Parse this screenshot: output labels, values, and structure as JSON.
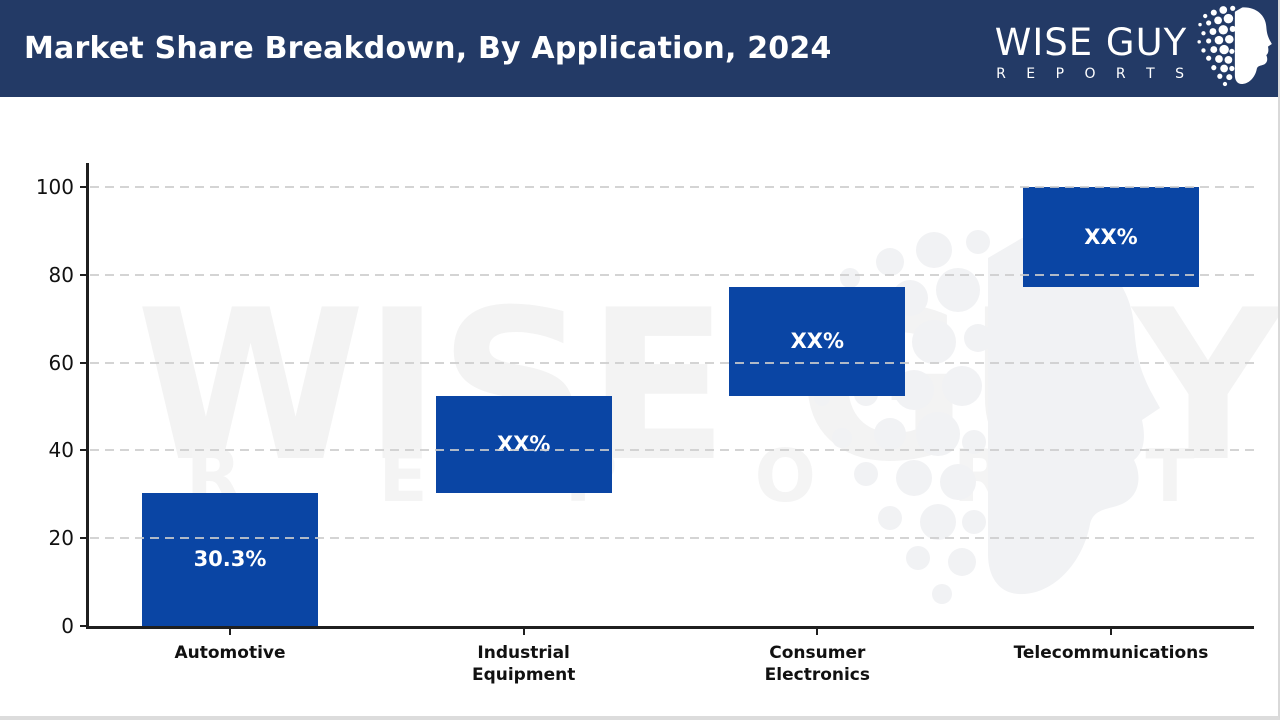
{
  "header": {
    "title": "Market Share Breakdown, By Application, 2024",
    "background": "#233a66",
    "logo": {
      "line1": "WISE GUY",
      "line2": "R E P O R T S"
    }
  },
  "watermark": {
    "line1": "WISE GUY",
    "line2": "R E P O R T S"
  },
  "colors": {
    "header_bg": "#233a66",
    "bar": "#0a45a4",
    "bar_label": "#ffffff",
    "grid": "#d9d9d9",
    "axis": "#1f1f1f",
    "watermark": "#f2f2f2"
  },
  "chart_data": {
    "type": "bar",
    "subtype": "waterfall",
    "title": "Market Share Breakdown, By Application, 2024",
    "categories": [
      "Automotive",
      "Industrial Equipment",
      "Consumer Electronics",
      "Telecommunications"
    ],
    "segments": [
      {
        "category": "Automotive",
        "category_lines": [
          "Automotive"
        ],
        "start": 0,
        "end": 30.3,
        "label": "30.3%"
      },
      {
        "category": "Industrial Equipment",
        "category_lines": [
          "Industrial",
          "Equipment"
        ],
        "start": 30.3,
        "end": 52.5,
        "label": "XX%"
      },
      {
        "category": "Consumer Electronics",
        "category_lines": [
          "Consumer",
          "Electronics"
        ],
        "start": 52.5,
        "end": 77.3,
        "label": "XX%"
      },
      {
        "category": "Telecommunications",
        "category_lines": [
          "Telecommunications"
        ],
        "start": 77.3,
        "end": 100,
        "label": "XX%"
      }
    ],
    "xlabel": "",
    "ylabel": "",
    "ylim": [
      0,
      100
    ],
    "yticks": [
      0,
      20,
      40,
      60,
      80,
      100
    ],
    "grid": "horizontal-dashed",
    "legend": "none",
    "bar_color": "#0a45a4",
    "bar_label_color": "#ffffff"
  }
}
